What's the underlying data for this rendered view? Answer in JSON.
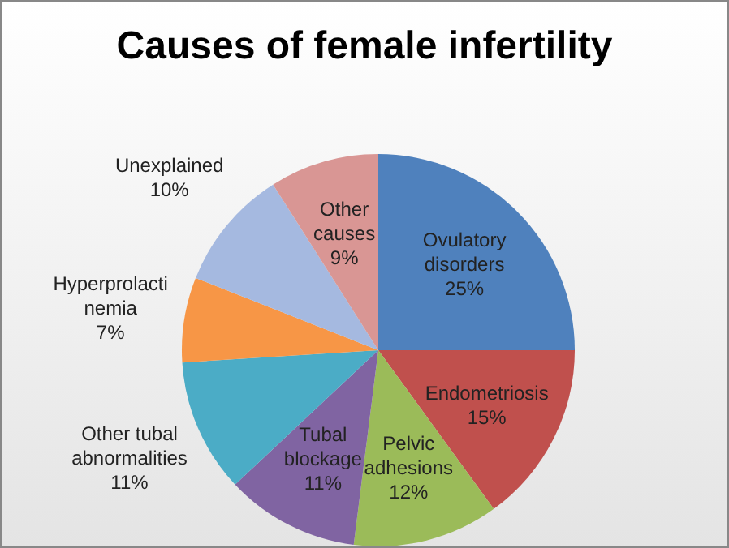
{
  "chart_data": {
    "type": "pie",
    "title": "Causes of female infertility",
    "categories": [
      "Ovulatory disorders",
      "Endometriosis",
      "Pelvic adhesions",
      "Tubal blockage",
      "Other tubal abnormalities",
      "Hyperprolactinemia",
      "Unexplained",
      "Other causes"
    ],
    "values": [
      25,
      15,
      12,
      11,
      11,
      7,
      10,
      9
    ],
    "value_labels": [
      "25%",
      "15%",
      "12%",
      "11%",
      "11%",
      "7%",
      "10%",
      "9%"
    ],
    "colors": [
      "#4f81bd",
      "#c0504d",
      "#9bbb59",
      "#8064a2",
      "#4bacc6",
      "#f79646",
      "#a5b9e0",
      "#d99694"
    ],
    "legend": false
  }
}
